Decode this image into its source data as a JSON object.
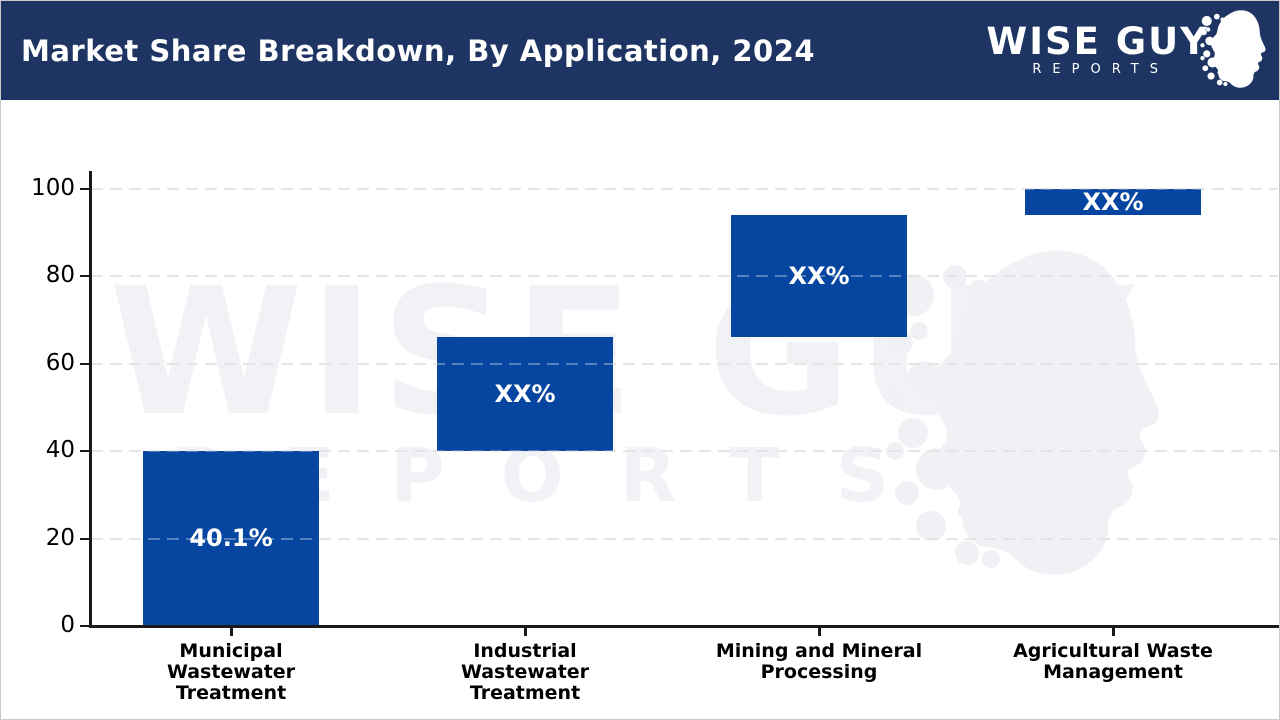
{
  "header": {
    "title": "Market Share Breakdown, By Application, 2024",
    "logo": {
      "line1": "WISE GUY",
      "line2": "REPORTS"
    }
  },
  "watermark": {
    "line1": "WISE GUY",
    "line2": "REPORTS"
  },
  "colors": {
    "header_bg": "#1e3563",
    "bar": "#0645a0",
    "bar_label": "#ffffff",
    "gridline": "#d9d9d9",
    "watermark": "#f1f2f5",
    "axis": "#1a1a1a"
  },
  "chart_data": {
    "type": "bar",
    "subtype": "waterfall",
    "title": "Market Share Breakdown, By Application, 2024",
    "categories": [
      "Municipal\nWastewater\nTreatment",
      "Industrial\nWastewater\nTreatment",
      "Mining and Mineral\nProcessing",
      "Agricultural Waste\nManagement"
    ],
    "segments": [
      {
        "start": 0,
        "end": 40.1,
        "label": "40.1%"
      },
      {
        "start": 40.1,
        "end": 66,
        "label": "XX%"
      },
      {
        "start": 66,
        "end": 94,
        "label": "XX%"
      },
      {
        "start": 94,
        "end": 100,
        "label": "XX%"
      }
    ],
    "xlabel": "",
    "ylabel": "",
    "ylim": [
      0,
      100
    ],
    "yticks": [
      0,
      20,
      40,
      60,
      80,
      100
    ],
    "grid": "horizontal-dashed",
    "legend": "none",
    "bar_color": "#0645a0",
    "bar_label_color": "#ffffff"
  }
}
